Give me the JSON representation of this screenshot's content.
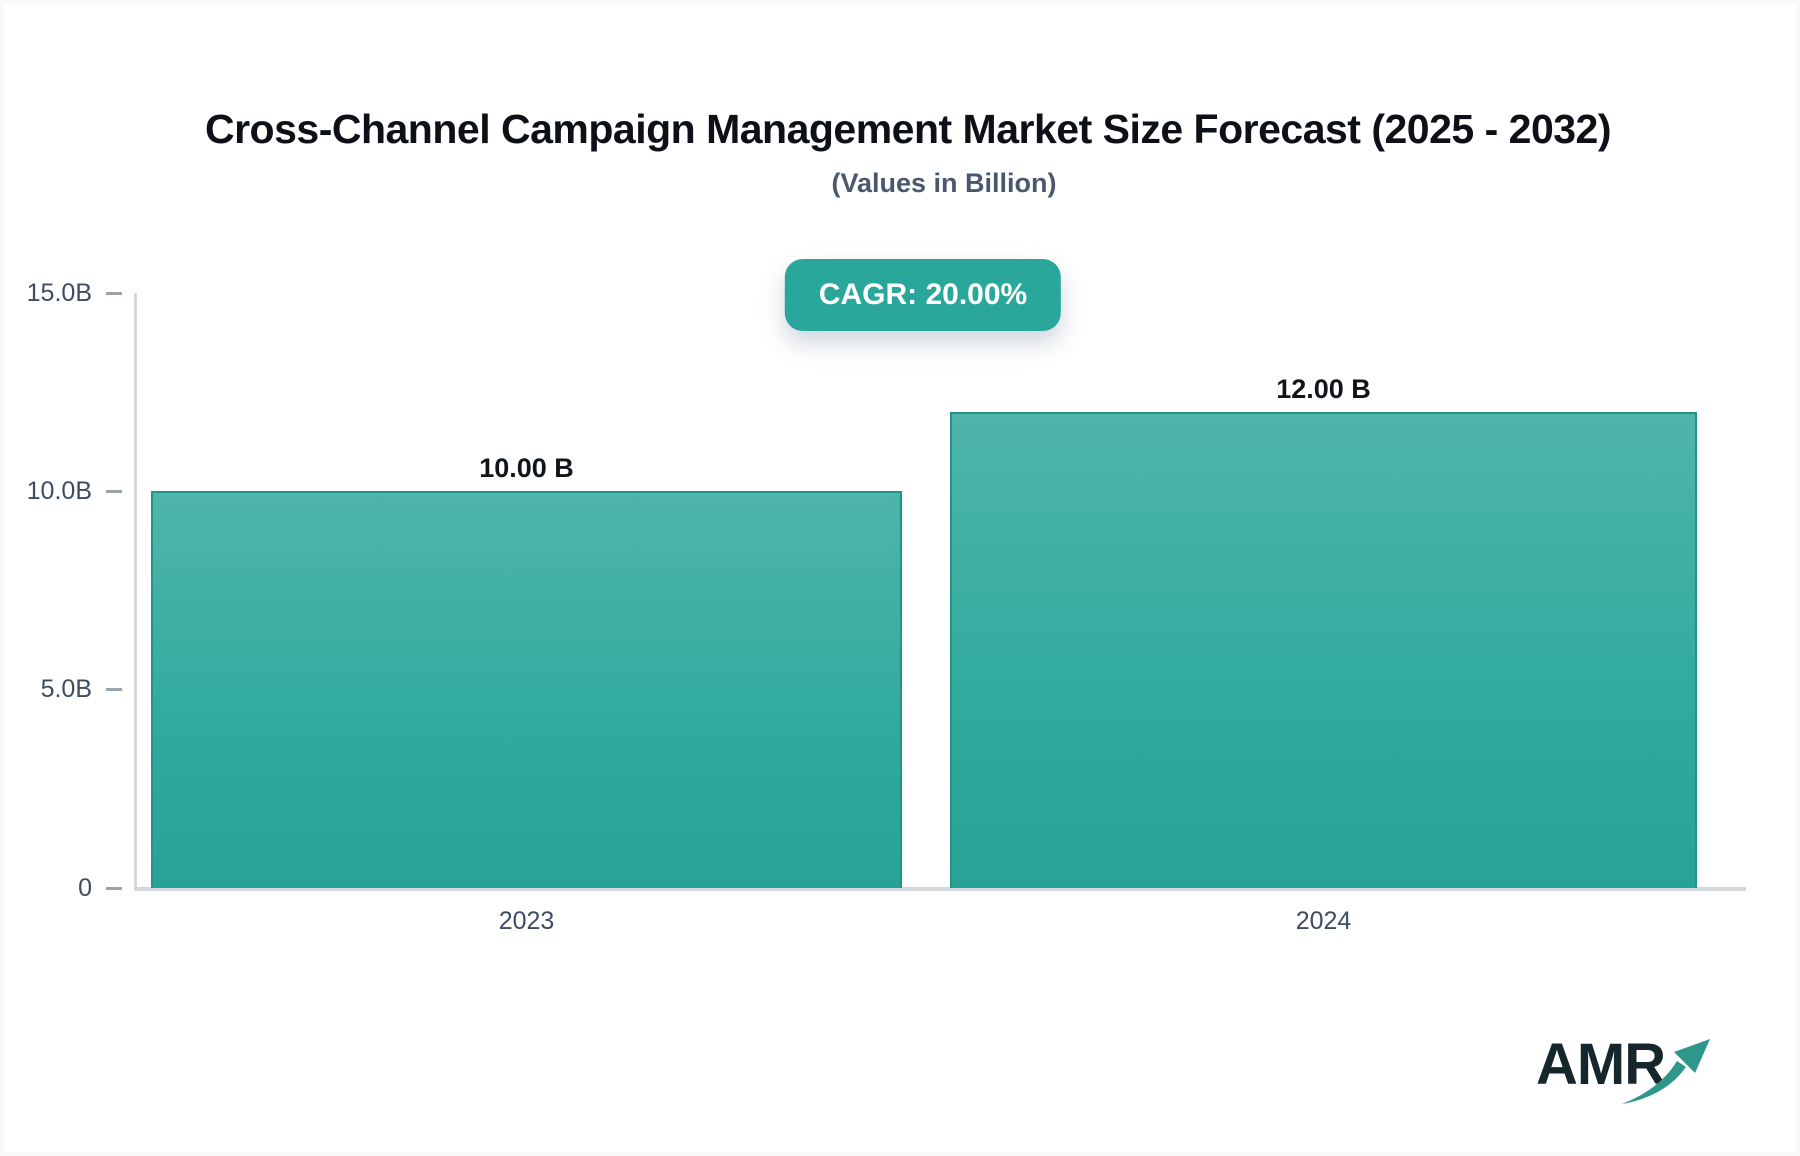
{
  "header": {
    "title": "Cross-Channel Campaign Management Market Size Forecast (2025 - 2032)",
    "subtitle": "(Values in Billion)",
    "badge_label": "CAGR: 20.00%"
  },
  "chart_data": {
    "type": "bar",
    "title": "Cross-Channel Campaign Management Market Size Forecast (2025 - 2032)",
    "subtitle": "(Values in Billion)",
    "categories": [
      "2023",
      "2024"
    ],
    "values": [
      10.0,
      12.0
    ],
    "value_labels": [
      "10.00 B",
      "12.00 B"
    ],
    "xlabel": "",
    "ylabel": "",
    "ylim": [
      0,
      15
    ],
    "yticks": [
      {
        "value": 15,
        "label": "15.0B"
      },
      {
        "value": 10,
        "label": "10.0B"
      },
      {
        "value": 5,
        "label": "5.0B"
      },
      {
        "value": 0,
        "label": "0"
      }
    ],
    "grid": false,
    "legend": false,
    "annotations": [
      "CAGR: 20.00%"
    ],
    "cagr_percent": "20.00%",
    "colors": {
      "bar_gradient_top": "#4fb5ab",
      "bar_gradient_bottom": "#27a296",
      "bar_border": "#1f9488",
      "badge_bg": "#2aa79b",
      "badge_text": "#ffffff",
      "axis_line": "#d3d6dd",
      "tick_text": "#3e4c62",
      "title_text": "#0d1117",
      "subtitle_text": "#4a586e",
      "logo_arrow": "#2e968b",
      "logo_text": "#15262c"
    }
  },
  "logo": {
    "text": "AMR"
  }
}
